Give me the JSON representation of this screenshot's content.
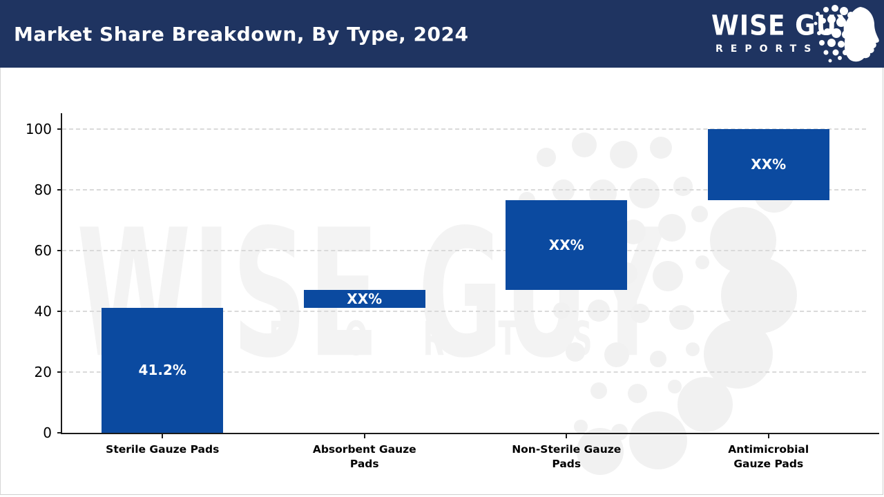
{
  "header": {
    "title": "Market Share Breakdown, By Type, 2024",
    "brand": {
      "line1": "WISE GUY",
      "line2": "REPORTS"
    }
  },
  "watermark": {
    "line1": "WISE GUY",
    "line2": "REPORTS"
  },
  "colors": {
    "header_bg": "#1f3461",
    "bar": "#0b4aa0",
    "axis": "#1a1a1a",
    "gridline": "#d9d9d9",
    "watermark": "#f3f3f3",
    "title_text": "#ffffff"
  },
  "chart_data": {
    "type": "waterfall",
    "title": "Market Share Breakdown, By Type, 2024",
    "categories": [
      "Sterile Gauze Pads",
      "Absorbent Gauze Pads",
      "Non-Sterile Gauze Pads",
      "Antimicrobial Gauze Pads"
    ],
    "category_lines": [
      [
        "Sterile Gauze Pads"
      ],
      [
        "Absorbent Gauze",
        "Pads"
      ],
      [
        "Non-Sterile Gauze",
        "Pads"
      ],
      [
        "Antimicrobial",
        "Gauze Pads"
      ]
    ],
    "segments": [
      {
        "category": "Sterile Gauze Pads",
        "label": "41.2%",
        "start": 0,
        "end": 41.2
      },
      {
        "category": "Absorbent Gauze Pads",
        "label": "XX%",
        "start": 41.2,
        "end": 47.1
      },
      {
        "category": "Non-Sterile Gauze Pads",
        "label": "XX%",
        "start": 47.1,
        "end": 76.6
      },
      {
        "category": "Antimicrobial Gauze Pads",
        "label": "XX%",
        "start": 76.6,
        "end": 100
      }
    ],
    "y_ticks": [
      0,
      20,
      40,
      60,
      80,
      100
    ],
    "ylim": [
      0,
      100
    ],
    "bar_color": "#0b4aa0",
    "grid": "horizontal-dashed",
    "legend_position": "none"
  }
}
